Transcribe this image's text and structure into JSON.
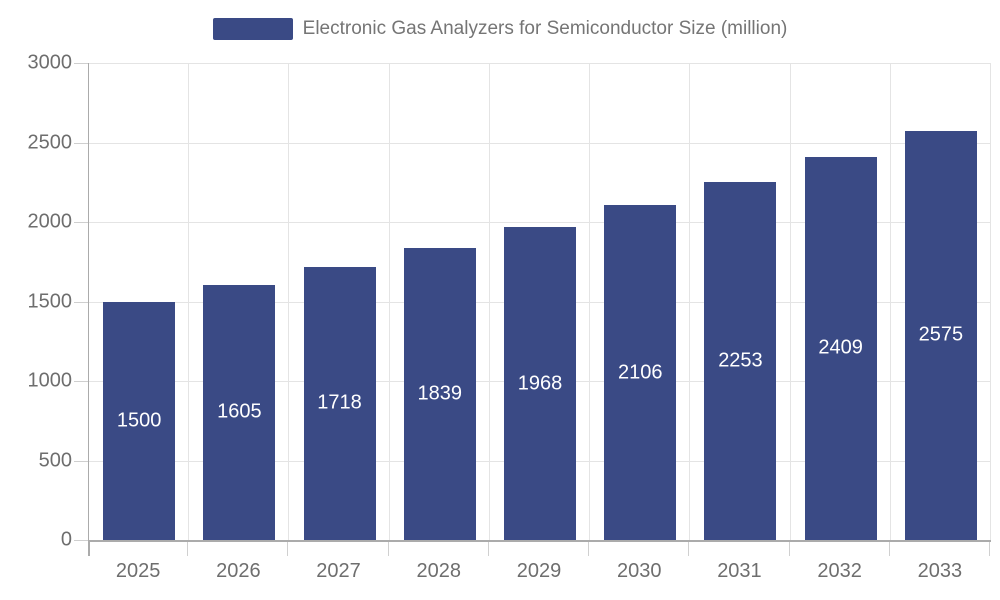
{
  "chart_data": {
    "type": "bar",
    "title": "Electronic Gas Analyzers for Semiconductor Size (million)",
    "series_name": "Electronic Gas Analyzers for Semiconductor Size (million)",
    "categories": [
      "2025",
      "2026",
      "2027",
      "2028",
      "2029",
      "2030",
      "2031",
      "2032",
      "2033"
    ],
    "values": [
      1500,
      1605,
      1718,
      1839,
      1968,
      2106,
      2253,
      2409,
      2575
    ],
    "xlabel": "",
    "ylabel": "",
    "ylim": [
      0,
      3000
    ],
    "y_ticks": [
      0,
      500,
      1000,
      1500,
      2000,
      2500,
      3000
    ],
    "grid": true,
    "legend_position": "top",
    "data_labels": "inside-center",
    "colors": {
      "bar": "#3A4A85",
      "bar_label": "#FFFFFF",
      "axis_line": "#ABABAB",
      "gridline": "#E4E4E4",
      "tick_label": "#6E6E6E",
      "legend_text": "#757575"
    }
  }
}
